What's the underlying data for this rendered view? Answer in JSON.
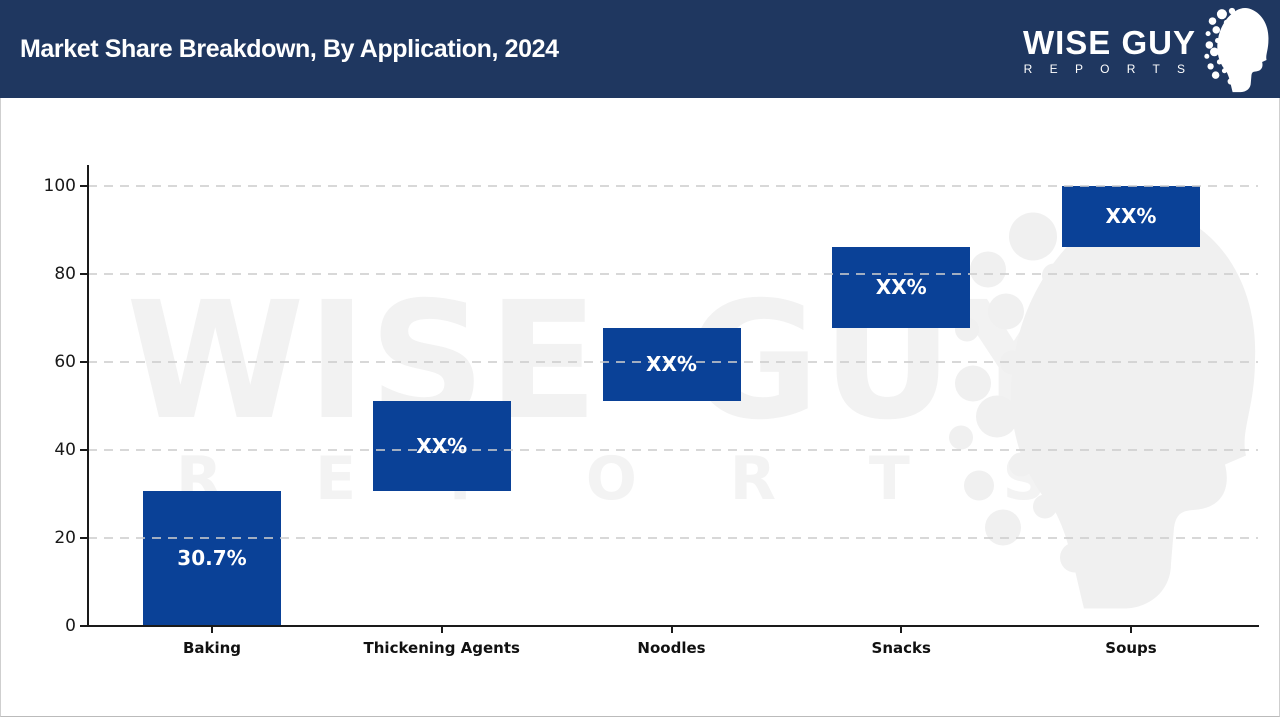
{
  "header": {
    "title": "Market Share Breakdown, By Application, 2024",
    "bg_color": "#1f3760",
    "logo": {
      "name": "Wise Guy Reports",
      "line1": "WISE GUY",
      "line2": "R E P O R T S"
    }
  },
  "watermark": {
    "line1": "WISE GUY",
    "line2": "R E P O R T S"
  },
  "chart_data": {
    "type": "bar",
    "subtype": "waterfall-floating-bars",
    "title": "Market Share Breakdown, By Application, 2024",
    "xlabel": "",
    "ylabel": "",
    "ylim": [
      0,
      105
    ],
    "yticks": [
      0,
      20,
      40,
      60,
      80,
      100
    ],
    "grid": "dashed-horizontal",
    "legend": "none",
    "bar_color": "#0a4197",
    "label_color": "#ffffff",
    "axis_color": "#1a1a1a",
    "categories": [
      "Baking",
      "Thickening Agents",
      "Noodles",
      "Snacks",
      "Soups"
    ],
    "bars": [
      {
        "category": "Baking",
        "start": 0,
        "end": 30.7,
        "value": 30.7,
        "label": "30.7%"
      },
      {
        "category": "Thickening Agents",
        "start": 30.7,
        "end": 51.2,
        "value": 20.5,
        "label": "XX%"
      },
      {
        "category": "Noodles",
        "start": 51.2,
        "end": 67.8,
        "value": 16.6,
        "label": "XX%"
      },
      {
        "category": "Snacks",
        "start": 67.8,
        "end": 86.2,
        "value": 18.4,
        "label": "XX%"
      },
      {
        "category": "Soups",
        "start": 86.2,
        "end": 100,
        "value": 13.8,
        "label": "XX%"
      }
    ]
  }
}
